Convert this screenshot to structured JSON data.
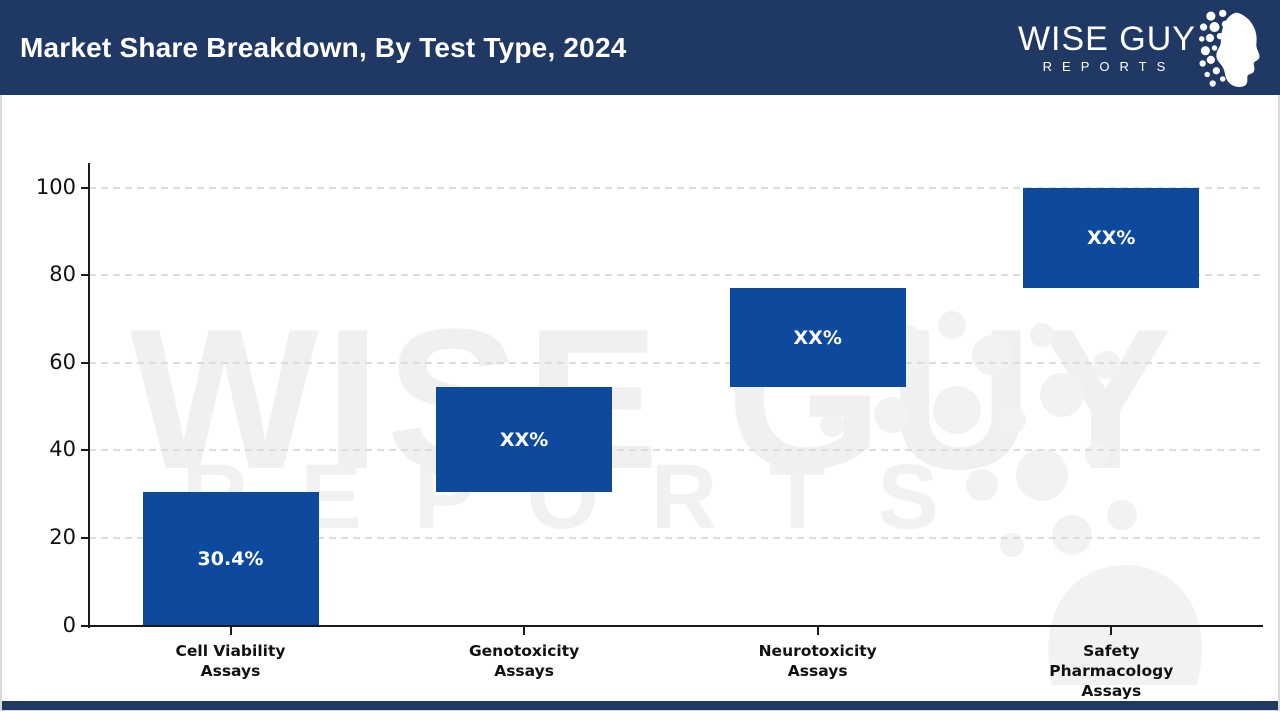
{
  "header": {
    "title": "Market Share Breakdown, By Test Type, 2024",
    "bg_color": "#203864",
    "logo": {
      "line1": "WISE GUY",
      "line2": "REPORTS"
    }
  },
  "watermark": {
    "line1": "WISE GUY",
    "line2": "REPORTS"
  },
  "chart_data": {
    "type": "bar",
    "subtype": "waterfall-stacked",
    "title": "Market Share Breakdown, By Test Type, 2024",
    "xlabel": "",
    "ylabel": "",
    "categories": [
      [
        "Cell Viability",
        "Assays"
      ],
      [
        "Genotoxicity",
        "Assays"
      ],
      [
        "Neurotoxicity",
        "Assays"
      ],
      [
        "Safety",
        "Pharmacology",
        "Assays"
      ]
    ],
    "segments": [
      {
        "start": 0,
        "end": 30.4,
        "height": 30.4,
        "label": "30.4%"
      },
      {
        "start": 30.4,
        "end": 54.5,
        "height": 24.1,
        "label": "XX%"
      },
      {
        "start": 54.5,
        "end": 77.0,
        "height": 22.5,
        "label": "XX%"
      },
      {
        "start": 77.0,
        "end": 100.0,
        "height": 23.0,
        "label": "XX%"
      }
    ],
    "yticks": [
      0,
      20,
      40,
      60,
      80,
      100
    ],
    "ylim": [
      0,
      105
    ],
    "grid": "horizontal-dashed",
    "legend": "none",
    "bar_color": "#0d4a9e",
    "bar_label_color": "#ffffff",
    "axis_color": "#1a1a1a",
    "gridline_color": "#dcdcdc"
  }
}
